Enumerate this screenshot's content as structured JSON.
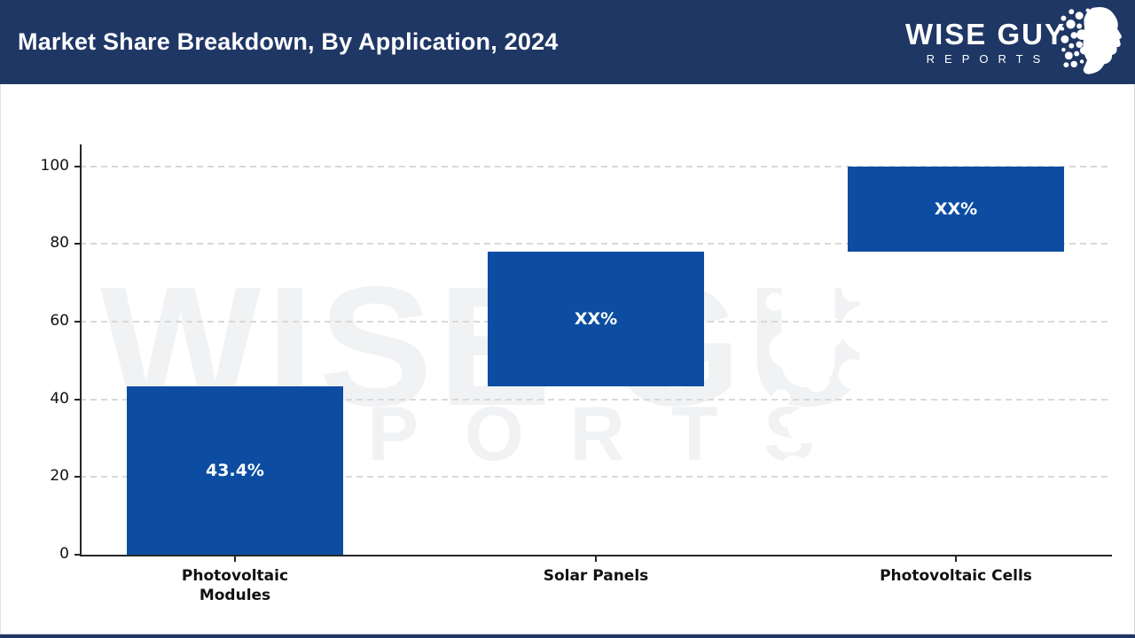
{
  "header": {
    "title": "Market Share Breakdown, By Application, 2024",
    "logo": {
      "line1": "WISE GUY",
      "line2": "REPORTS"
    }
  },
  "watermark": {
    "line1": "WISE GUY",
    "line2": "REPORTS"
  },
  "colors": {
    "header_bg": "#1f3765",
    "bar": "#0c4da2",
    "gridline": "#d9d9d9",
    "axis": "#262626",
    "watermark": "#f1f2f4",
    "value_label": "#ffffff"
  },
  "chart_data": {
    "type": "bar",
    "subtype": "waterfall-segments",
    "title": "Market Share Breakdown, By Application, 2024",
    "categories": [
      "Photovoltaic Modules",
      "Solar Panels",
      "Photovoltaic Cells"
    ],
    "category_tick_lines": [
      [
        "Photovoltaic",
        "Modules"
      ],
      [
        "Solar Panels"
      ],
      [
        "Photovoltaic Cells"
      ]
    ],
    "bars": [
      {
        "category": "Photovoltaic Modules",
        "start": 0,
        "end": 43.4,
        "label": "43.4%"
      },
      {
        "category": "Solar Panels",
        "start": 43.4,
        "end": 78,
        "label": "XX%"
      },
      {
        "category": "Photovoltaic Cells",
        "start": 78,
        "end": 100,
        "label": "XX%"
      }
    ],
    "yticks": [
      0,
      20,
      40,
      60,
      80,
      100
    ],
    "ylim": [
      0,
      105.6
    ],
    "xlabel": "",
    "ylabel": "",
    "grid": "horizontal dashed",
    "legend": "none"
  }
}
